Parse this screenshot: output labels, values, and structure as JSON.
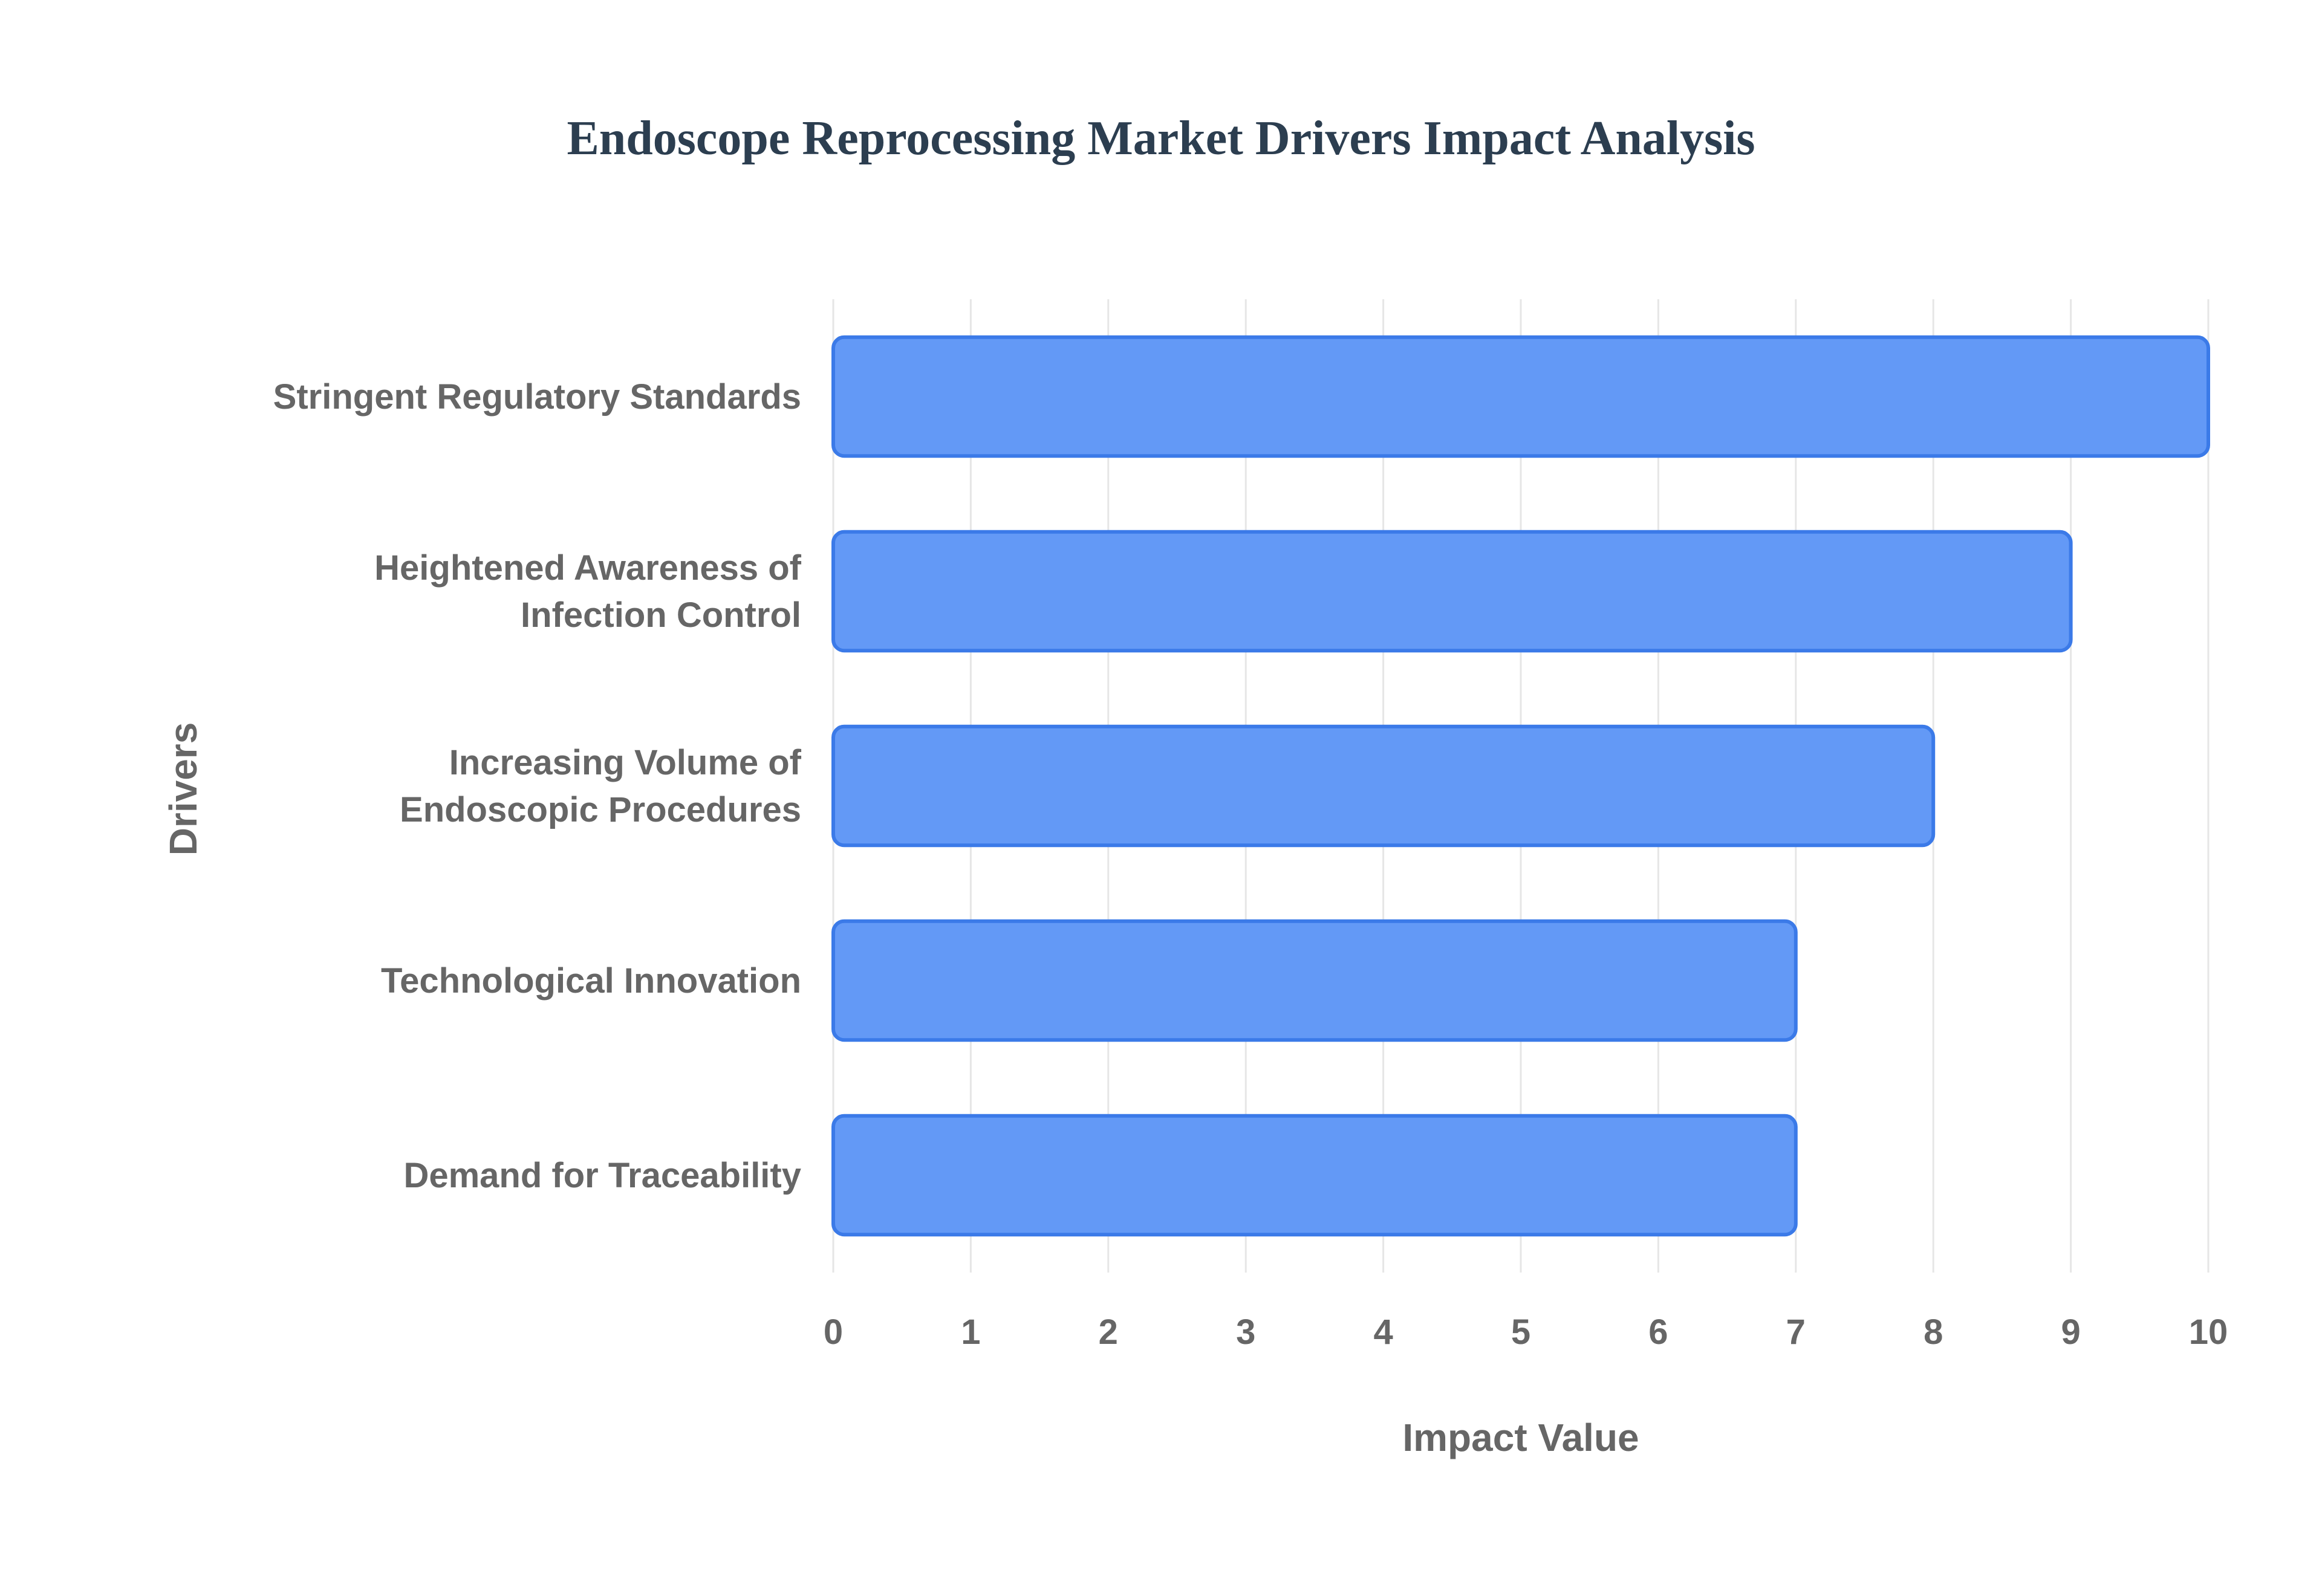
{
  "chart_data": {
    "type": "bar",
    "orientation": "horizontal",
    "title": "Endoscope Reprocessing Market Drivers Impact Analysis",
    "xlabel": "Impact Value",
    "ylabel": "Drivers",
    "xlim": [
      0,
      10
    ],
    "x_ticks": [
      "0",
      "1",
      "2",
      "3",
      "4",
      "5",
      "6",
      "7",
      "8",
      "9",
      "10"
    ],
    "grid": true,
    "legend": "none",
    "categories": [
      [
        "Stringent Regulatory Standards"
      ],
      [
        "Heightened Awareness of",
        "Infection Control"
      ],
      [
        "Increasing Volume of",
        "Endoscopic Procedures"
      ],
      [
        "Technological Innovation"
      ],
      [
        "Demand for Traceability"
      ]
    ],
    "values": [
      10,
      9,
      8,
      7,
      7
    ],
    "colors": {
      "bar_fill": "#6399f6",
      "bar_border": "#3b7ae8",
      "grid": "#e6e6e6",
      "title": "#2c3e50",
      "axis_text": "#666666"
    }
  }
}
